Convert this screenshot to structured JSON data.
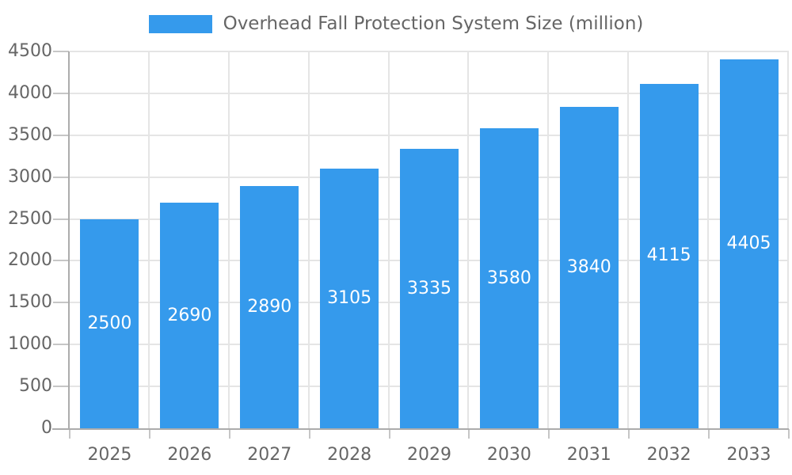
{
  "legend": {
    "label": "Overhead Fall Protection System Size (million)"
  },
  "colors": {
    "bar": "#359AEC",
    "legend_text": "#666666",
    "axis_text": "#666666",
    "grid_line": "#E5E5E5",
    "axis_line": "#ACACAC",
    "tick_mark": "#C6C6C6",
    "value_label": "#FFFFFF",
    "background": "#FFFFFF"
  },
  "chart_data": {
    "type": "bar",
    "title": "Overhead Fall Protection System Size (million)",
    "series_name": "Overhead Fall Protection System Size (million)",
    "categories": [
      "2025",
      "2026",
      "2027",
      "2028",
      "2029",
      "2030",
      "2031",
      "2032",
      "2033"
    ],
    "values": [
      2500,
      2690,
      2890,
      3105,
      3335,
      3580,
      3840,
      4115,
      4405
    ],
    "value_labels": [
      "2500",
      "2690",
      "2890",
      "3105",
      "3335",
      "3580",
      "3840",
      "4115",
      "4405"
    ],
    "xlabel": "",
    "ylabel": "",
    "ylim": [
      0,
      4500
    ],
    "yticks": [
      0,
      500,
      1000,
      1500,
      2000,
      2500,
      3000,
      3500,
      4000,
      4500
    ],
    "grid": true,
    "legend_position": "top",
    "value_label_position": "inside-center"
  }
}
